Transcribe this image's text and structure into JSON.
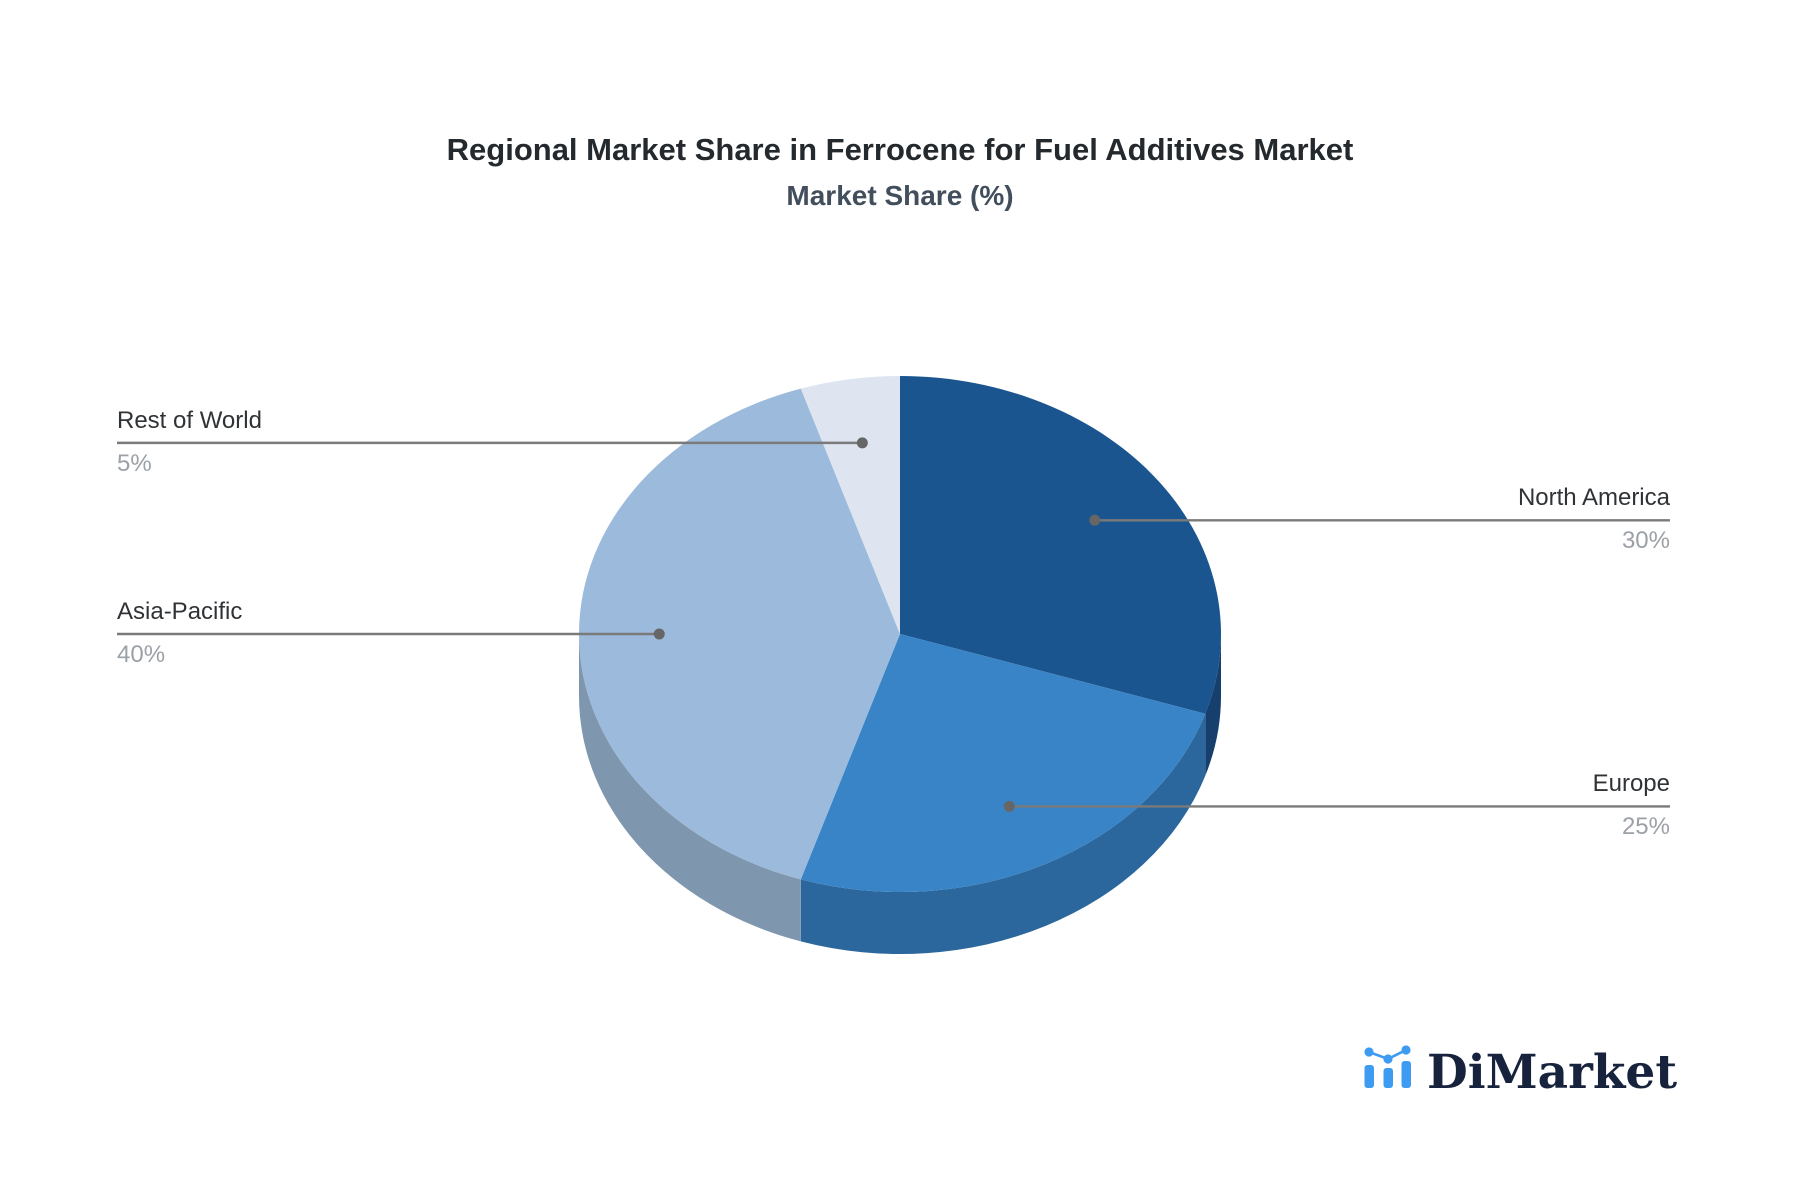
{
  "chart_data": {
    "type": "pie",
    "title": "Regional Market Share in Ferrocene for Fuel Additives Market",
    "subtitle": "Market Share (%)",
    "unit": "%",
    "style": "3d-pie",
    "legend_position": "none",
    "grid": false,
    "categories": [
      "North America",
      "Europe",
      "Asia-Pacific",
      "Rest of World"
    ],
    "values": [
      30,
      25,
      40,
      5
    ],
    "slices": [
      {
        "label": "North America",
        "value": 30,
        "pct_label": "30%",
        "color": "#1B5590",
        "side_color": "#173F6D",
        "label_side": "right"
      },
      {
        "label": "Europe",
        "value": 25,
        "pct_label": "25%",
        "color": "#3884C7",
        "side_color": "#2B679C",
        "label_side": "right"
      },
      {
        "label": "Asia-Pacific",
        "value": 40,
        "pct_label": "40%",
        "color": "#9CBADB",
        "side_color": "#7E97AE",
        "label_side": "left"
      },
      {
        "label": "Rest of World",
        "value": 5,
        "pct_label": "5%",
        "color": "#DEE5F0",
        "side_color": "#DEE5F0",
        "label_side": "left"
      }
    ],
    "callout_line_color": "#7A7A7A",
    "callout_dot_color": "#666666",
    "label_color": "#303336",
    "percent_color": "#9BA1A7"
  },
  "branding": {
    "logo_text": "DiMarket",
    "logo_icon": "bar-chart-icon",
    "icon_color": "#3E9BF2",
    "text_color": "#17223C"
  }
}
